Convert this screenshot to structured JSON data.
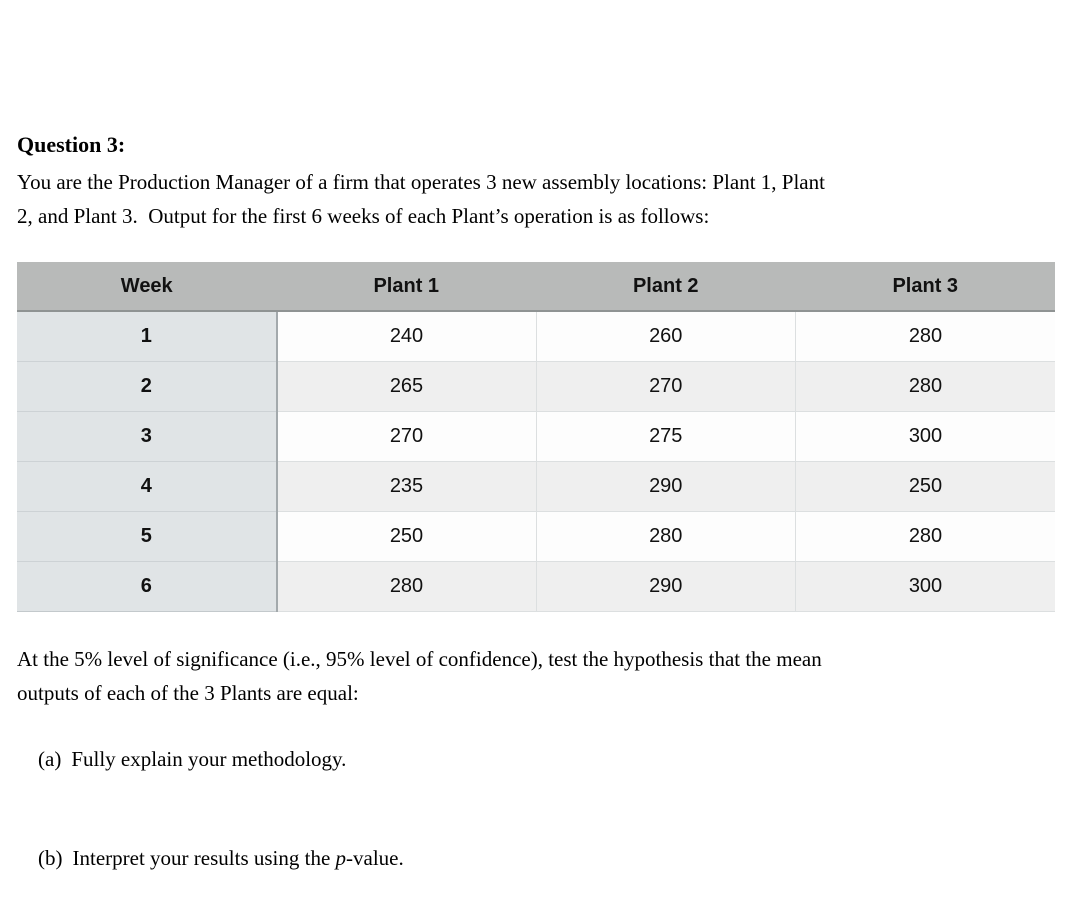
{
  "question": {
    "heading": "Question 3:",
    "intro_lines": [
      "You are the Production Manager of a firm that operates 3 new assembly locations: Plant 1, Plant",
      "2, and Plant 3.  Output for the first 6 weeks of each Plant’s operation is as follows:"
    ]
  },
  "table": {
    "columns": [
      "Week",
      "Plant 1",
      "Plant 2",
      "Plant 3"
    ],
    "rows": [
      {
        "week": "1",
        "plant1": "240",
        "plant2": "260",
        "plant3": "280"
      },
      {
        "week": "2",
        "plant1": "265",
        "plant2": "270",
        "plant3": "280"
      },
      {
        "week": "3",
        "plant1": "270",
        "plant2": "275",
        "plant3": "300"
      },
      {
        "week": "4",
        "plant1": "235",
        "plant2": "290",
        "plant3": "250"
      },
      {
        "week": "5",
        "plant1": "250",
        "plant2": "280",
        "plant3": "280"
      },
      {
        "week": "6",
        "plant1": "280",
        "plant2": "290",
        "plant3": "300"
      }
    ]
  },
  "closing": {
    "lines": [
      "At the 5% level of significance (i.e., 95% level of confidence), test the hypothesis that the mean",
      "outputs of each of the 3 Plants are equal:"
    ]
  },
  "items": {
    "a": {
      "label": "(a)",
      "text": "Fully explain your methodology."
    },
    "b": {
      "label": "(b)",
      "text_pre": "Interpret your results using the ",
      "text_italic": "p",
      "text_post": "-value."
    }
  },
  "colors": {
    "header_bg": "#b8bab9",
    "week_col_bg": "#e0e4e6",
    "row_odd_bg": "#fdfdfd",
    "row_even_bg": "#efefef",
    "text": "#000000"
  }
}
